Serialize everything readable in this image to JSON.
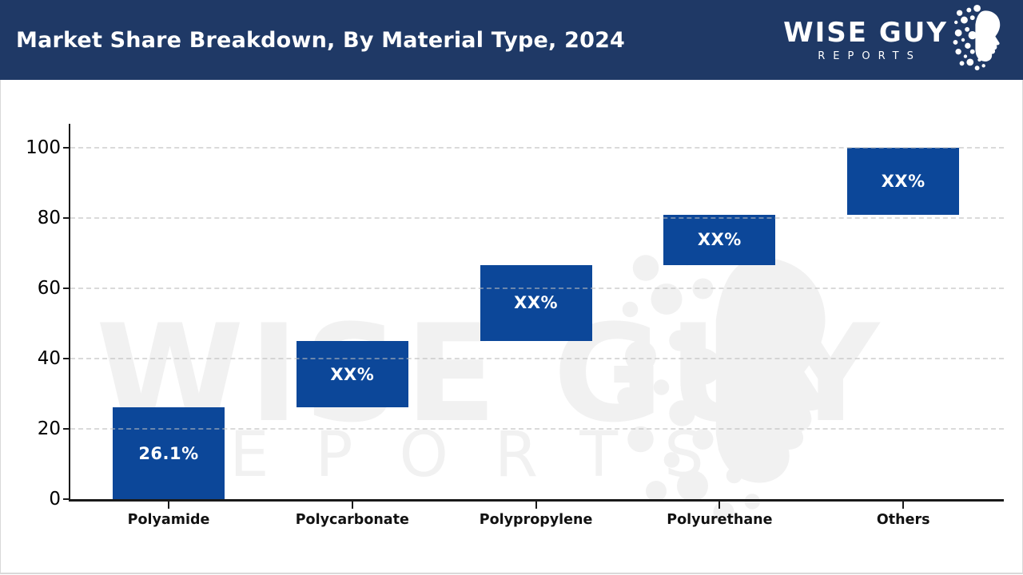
{
  "header": {
    "title": "Market Share Breakdown, By Material Type, 2024",
    "logo": {
      "line1": "WISE GUY",
      "line2": "REPORTS"
    }
  },
  "watermark": {
    "line1": "WISE GUY",
    "line2": "REPORTS"
  },
  "colors": {
    "header_bg": "#1f3966",
    "bar_blue": "#0c4799",
    "axis": "#1a1a1a",
    "gridline": "#bbbbbb",
    "watermark": "#f1f1f1",
    "edge_line": "#d9d9d9"
  },
  "chart_data": {
    "type": "bar",
    "subtype": "waterfall",
    "title": "Market Share Breakdown, By Material Type, 2024",
    "xlabel": "",
    "ylabel": "",
    "categories": [
      "Polyamide",
      "Polycarbonate",
      "Polypropylene",
      "Polyurethane",
      "Others"
    ],
    "segments": [
      {
        "category": "Polyamide",
        "start": 0,
        "end": 26.1,
        "label": "26.1%"
      },
      {
        "category": "Polycarbonate",
        "start": 26.1,
        "end": 45.0,
        "label": "XX%"
      },
      {
        "category": "Polypropylene",
        "start": 45.0,
        "end": 66.6,
        "label": "XX%"
      },
      {
        "category": "Polyurethane",
        "start": 66.6,
        "end": 80.9,
        "label": "XX%"
      },
      {
        "category": "Others",
        "start": 80.9,
        "end": 100.0,
        "label": "XX%"
      }
    ],
    "yticks": [
      0,
      20,
      40,
      60,
      80,
      100
    ],
    "ylim": [
      0,
      107
    ],
    "grid": "horizontal-dashed",
    "legend": "none",
    "bar_value_labels_inside": true
  }
}
